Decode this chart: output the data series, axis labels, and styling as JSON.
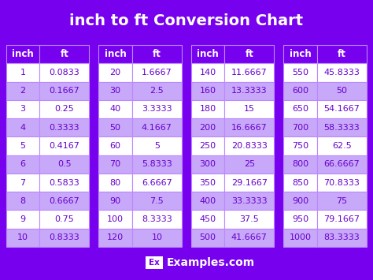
{
  "title": "inch to ft Conversion Chart",
  "title_color": "#ffffff",
  "bg_color": "#7700ee",
  "cell_bg_white": "#ffffff",
  "cell_bg_purple": "#c8a8f8",
  "header_text_color": "#ffffff",
  "cell_text_color": "#6600cc",
  "border_color": "#bb88ff",
  "tables": [
    {
      "col1": [
        "inch",
        "1",
        "2",
        "3",
        "4",
        "5",
        "6",
        "7",
        "8",
        "9",
        "10"
      ],
      "col2": [
        "ft",
        "0.0833",
        "0.1667",
        "0.25",
        "0.3333",
        "0.4167",
        "0.5",
        "0.5833",
        "0.6667",
        "0.75",
        "0.8333"
      ]
    },
    {
      "col1": [
        "inch",
        "20",
        "30",
        "40",
        "50",
        "60",
        "70",
        "80",
        "90",
        "100",
        "120"
      ],
      "col2": [
        "ft",
        "1.6667",
        "2.5",
        "3.3333",
        "4.1667",
        "5",
        "5.8333",
        "6.6667",
        "7.5",
        "8.3333",
        "10"
      ]
    },
    {
      "col1": [
        "inch",
        "140",
        "160",
        "180",
        "200",
        "250",
        "300",
        "350",
        "400",
        "450",
        "500"
      ],
      "col2": [
        "ft",
        "11.6667",
        "13.3333",
        "15",
        "16.6667",
        "20.8333",
        "25",
        "29.1667",
        "33.3333",
        "37.5",
        "41.6667"
      ]
    },
    {
      "col1": [
        "inch",
        "550",
        "600",
        "650",
        "700",
        "750",
        "800",
        "850",
        "900",
        "950",
        "1000"
      ],
      "col2": [
        "ft",
        "45.8333",
        "50",
        "54.1667",
        "58.3333",
        "62.5",
        "66.6667",
        "70.8333",
        "75",
        "79.1667",
        "83.3333"
      ]
    }
  ],
  "footer_text": "Examples.com",
  "footer_ex_bg": "#ffffff",
  "footer_ex_text": "#7700ee"
}
